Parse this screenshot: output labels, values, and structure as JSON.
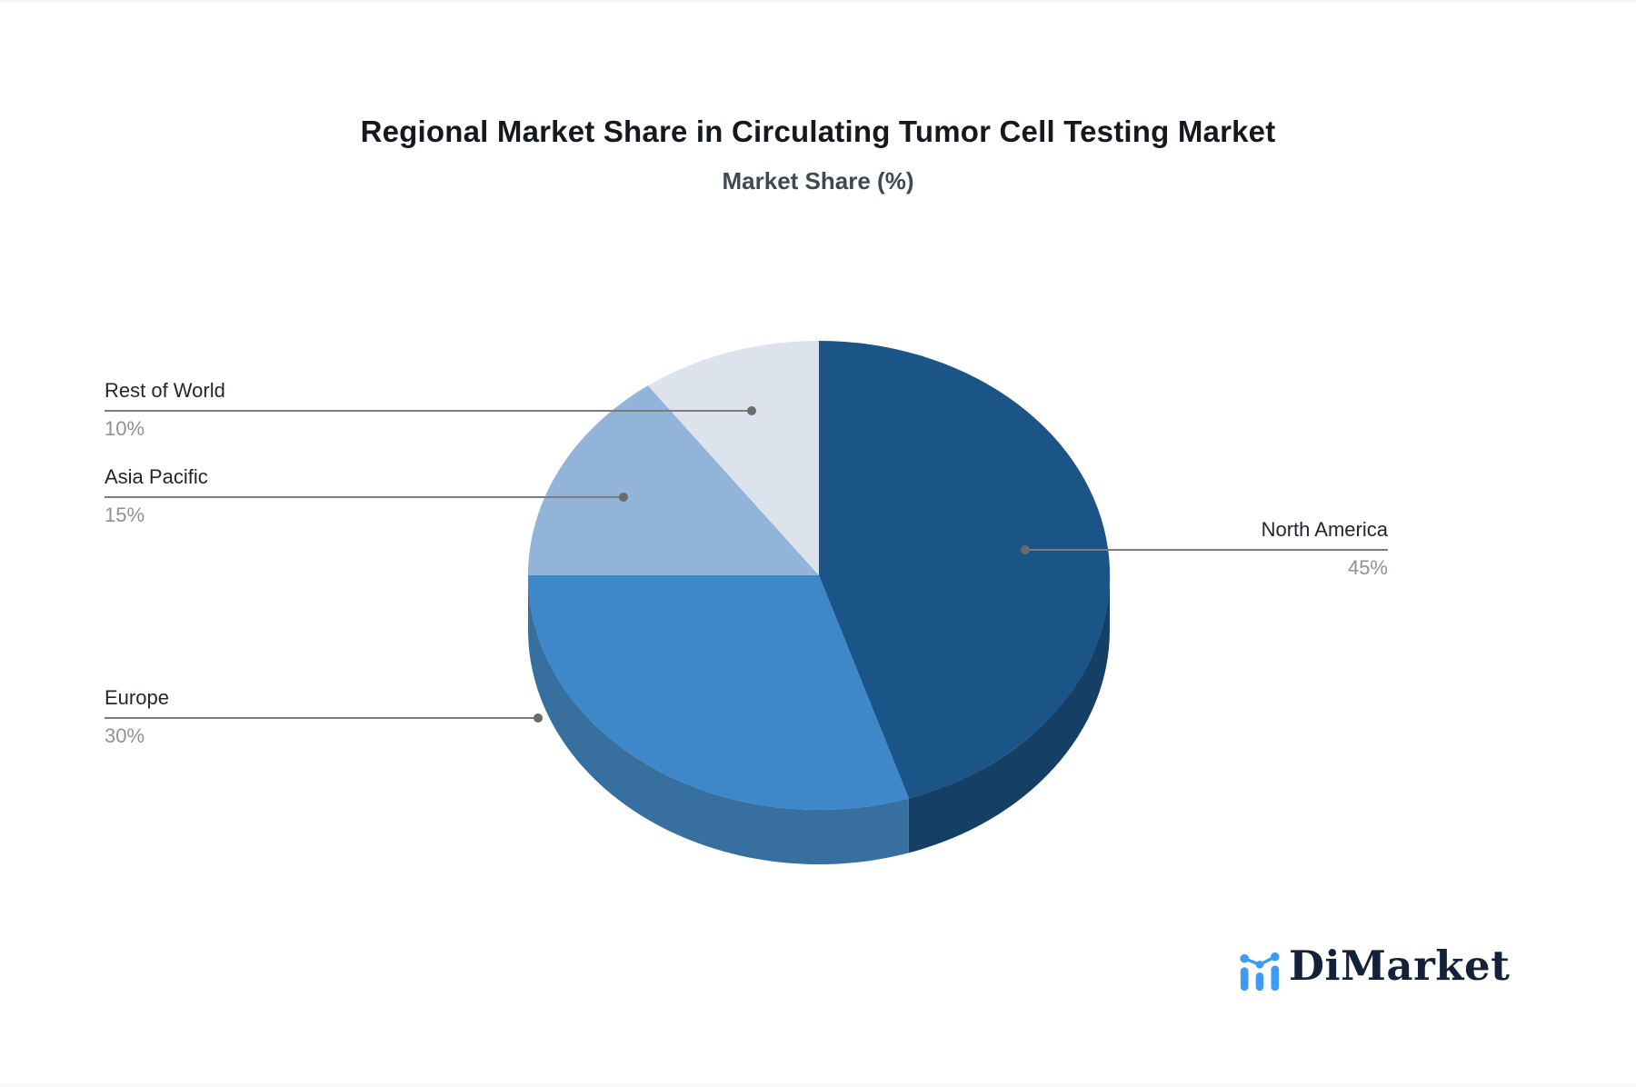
{
  "header": {
    "title": "Regional Market Share in Circulating Tumor Cell Testing Market",
    "subtitle": "Market Share (%)"
  },
  "chart_data": {
    "type": "pie",
    "style": "3d",
    "title": "Regional Market Share in Circulating Tumor Cell Testing Market",
    "subtitle": "Market Share (%)",
    "unit": "%",
    "start_angle_deg": 0,
    "direction": "clockwise",
    "legend_position": "callout-labels",
    "slices": [
      {
        "label": "North America",
        "value": 45,
        "display": "45%",
        "color": "#1B5487",
        "side_color": "#163F66"
      },
      {
        "label": "Europe",
        "value": 30,
        "display": "30%",
        "color": "#3E88CA",
        "side_color": "#376F9F"
      },
      {
        "label": "Asia Pacific",
        "value": 15,
        "display": "15%",
        "color": "#92B4D8",
        "side_color": "#7A9BC0"
      },
      {
        "label": "Rest of World",
        "value": 10,
        "display": "10%",
        "color": "#DCE3ED",
        "side_color": "#B9C4D4"
      }
    ],
    "leader_line_color": "#7c7c7c",
    "leader_dot_color": "#6b6b6b"
  },
  "branding": {
    "logo_text": "DiMarket",
    "logo_icon": "bar-line-chart-icon",
    "text_color": "#14213B",
    "icon_color": "#3E9BF4"
  }
}
